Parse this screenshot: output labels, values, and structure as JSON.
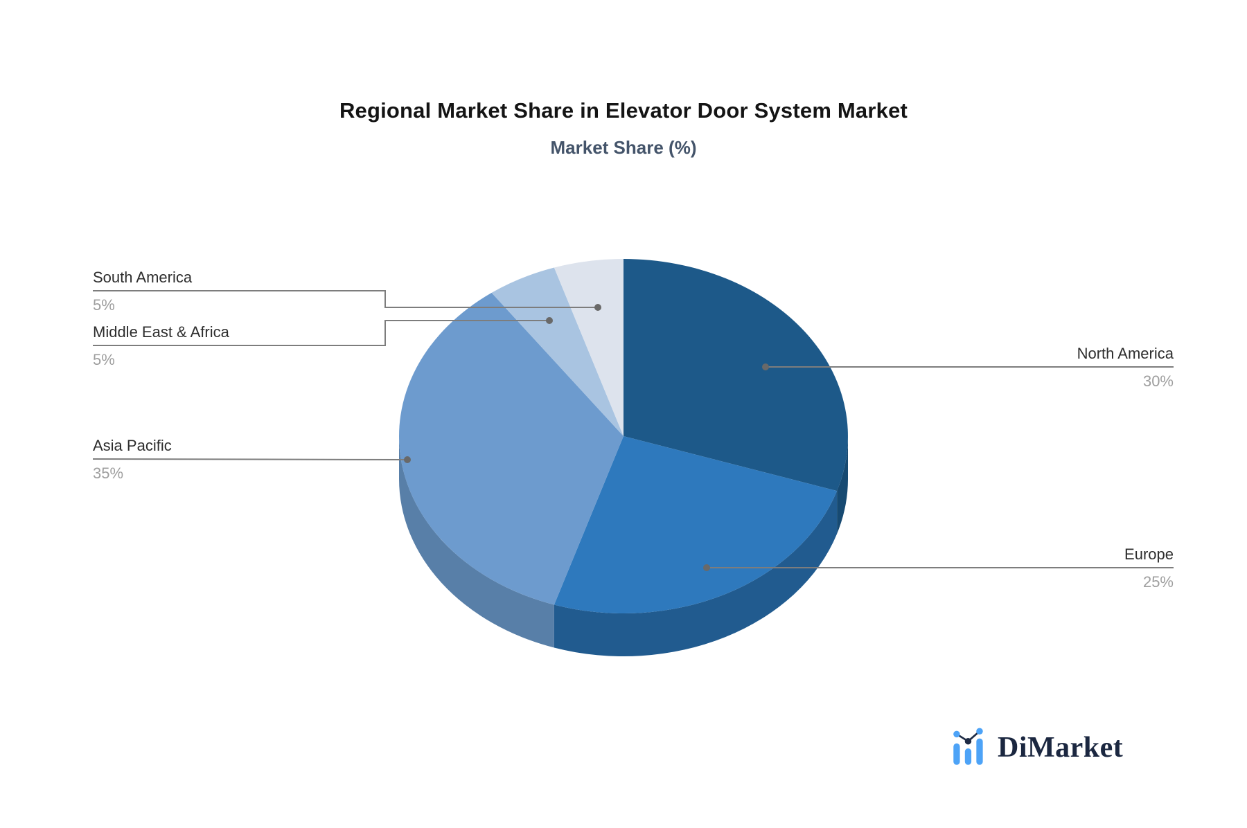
{
  "header": {
    "title": "Regional Market Share in Elevator Door System Market",
    "subtitle": "Market Share (%)"
  },
  "branding": {
    "logo_text": "DiMarket",
    "logo_bar_color": "#4da3f7",
    "logo_line_color": "#1e2b45"
  },
  "style": {
    "leader_line_color": "#7d7d7d",
    "leader_dot_color": "#696969",
    "label_color": "#2d2d2d",
    "pct_color": "#9e9e9e"
  },
  "chart_data": {
    "type": "pie",
    "title": "Regional Market Share in Elevator Door System Market",
    "subtitle": "Market Share (%)",
    "unit": "%",
    "direction": "clockwise",
    "start_angle_deg": 0,
    "depth_3d": true,
    "legend_position": "callout-labels",
    "segments": [
      {
        "label": "North America",
        "value": 30,
        "pct": "30%",
        "color": "#1d5989",
        "side_color": "#174a72"
      },
      {
        "label": "Europe",
        "value": 25,
        "pct": "25%",
        "color": "#2e79bd",
        "side_color": "#215b8f"
      },
      {
        "label": "Asia Pacific",
        "value": 35,
        "pct": "35%",
        "color": "#6d9bce",
        "side_color": "#587fa8"
      },
      {
        "label": "Middle East & Africa",
        "value": 5,
        "pct": "5%",
        "color": "#a9c4e1",
        "side_color": "#8aa6c4"
      },
      {
        "label": "South America",
        "value": 5,
        "pct": "5%",
        "color": "#dde3ed",
        "side_color": "#b9c4d4"
      }
    ]
  }
}
